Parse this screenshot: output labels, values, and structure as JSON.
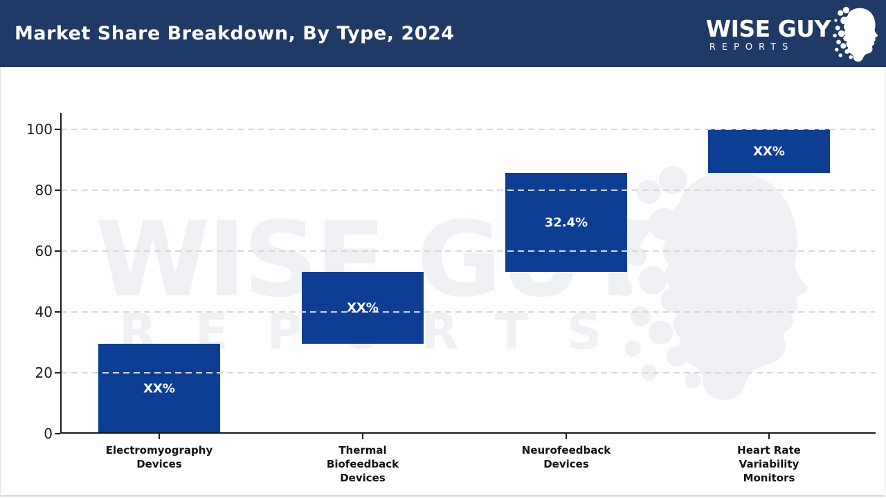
{
  "header": {
    "title": "Market Share Breakdown, By Type, 2024",
    "logo": {
      "name": "WISE GUY",
      "tagline": "REPORTS"
    }
  },
  "watermark": {
    "name": "WISE GUY",
    "tagline": "REPORTS"
  },
  "chart_data": {
    "type": "bar",
    "subtype": "floating-waterfall",
    "title": "Market Share Breakdown, By Type, 2024",
    "categories": [
      "Electromyography Devices",
      "Thermal Biofeedback Devices",
      "Neurofeedback Devices",
      "Heart Rate Variability Monitors"
    ],
    "category_lines": [
      [
        "Electromyography",
        "Devices"
      ],
      [
        "Thermal",
        "Biofeedback",
        "Devices"
      ],
      [
        "Neurofeedback",
        "Devices"
      ],
      [
        "Heart Rate",
        "Variability",
        "Monitors"
      ]
    ],
    "segments": [
      {
        "category": "Electromyography Devices",
        "start": 0,
        "end": 29.5,
        "value": 29.5,
        "value_label": "XX%"
      },
      {
        "category": "Thermal Biofeedback Devices",
        "start": 29.5,
        "end": 53.2,
        "value": 23.7,
        "value_label": "XX%"
      },
      {
        "category": "Neurofeedback Devices",
        "start": 53.2,
        "end": 85.6,
        "value": 32.4,
        "value_label": "32.4%"
      },
      {
        "category": "Heart Rate Variability Monitors",
        "start": 85.6,
        "end": 100,
        "value": 14.4,
        "value_label": "XX%"
      }
    ],
    "yticks": [
      0,
      20,
      40,
      60,
      80,
      100
    ],
    "ylim": [
      0,
      105
    ],
    "grid": true,
    "grid_style": "dashed",
    "legend": false,
    "colors": {
      "bar": "#0d3e93",
      "header": "#1f3a64",
      "grid": "#d8d8d8",
      "watermark": "#f0f1f4",
      "axis": "#1a1a1a",
      "bar_label_text": "#ffffff"
    }
  }
}
